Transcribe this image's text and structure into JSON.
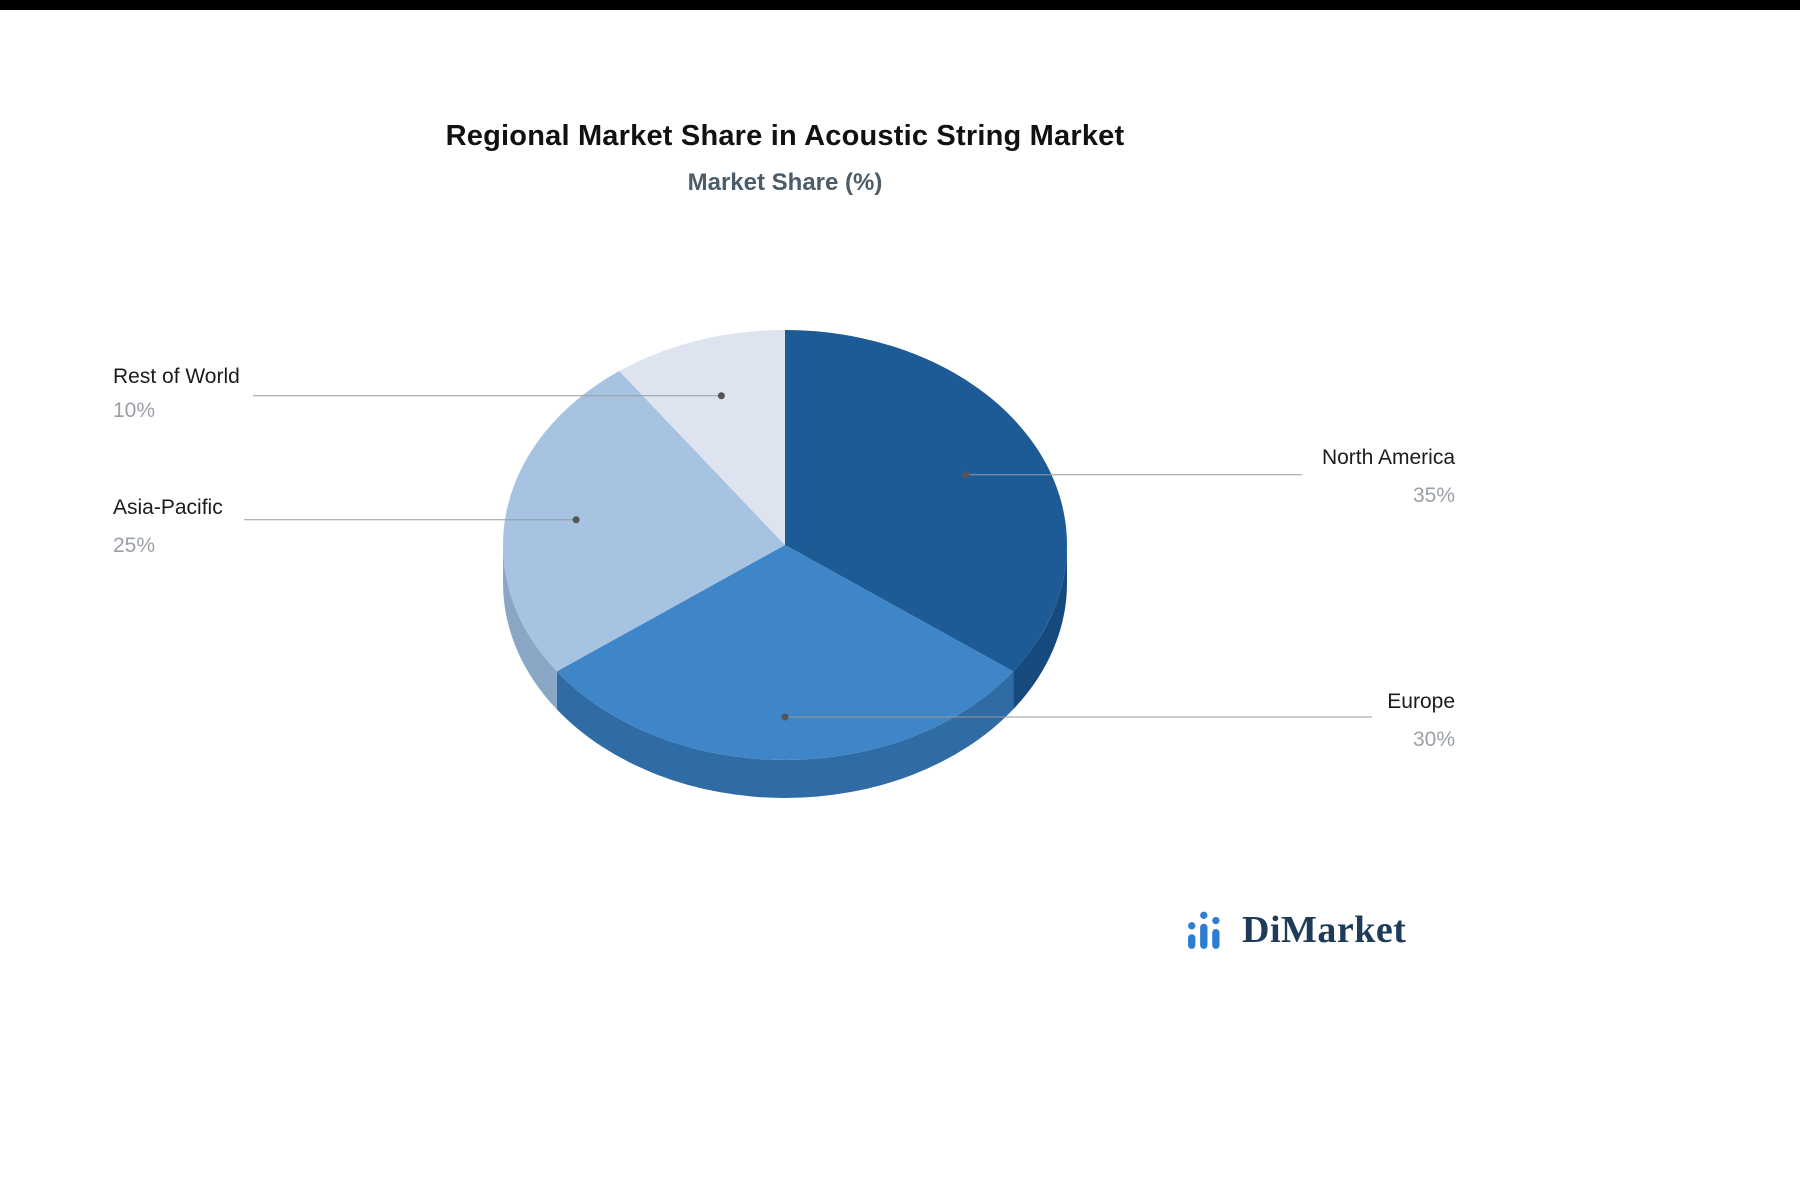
{
  "chart_data": {
    "type": "pie",
    "title": "Regional Market Share in Acoustic String Market",
    "subtitle": "Market Share (%)",
    "categories": [
      "North America",
      "Europe",
      "Asia-Pacific",
      "Rest of World"
    ],
    "values": [
      35,
      30,
      25,
      10
    ],
    "value_labels": [
      "35%",
      "30%",
      "25%",
      "10%"
    ],
    "colors": [
      "#1d5b97",
      "#3e86c7",
      "#a7c3e2",
      "#dde4ef"
    ],
    "side_colors": [
      "#164a7d",
      "#2f6ba4",
      "#89a6c5",
      "#b9c4d6"
    ],
    "start_angle_deg": -90,
    "direction": "clockwise",
    "effect": "3d",
    "label_style": "callout",
    "legend_position": "none",
    "leader_line_color": "#999999",
    "leader_dot_color": "#555555"
  },
  "branding": {
    "name": "DiMarket",
    "icon": "bar-chart-icon",
    "text_color": "#1e3c5a",
    "icon_color": "#2d7dd2"
  }
}
